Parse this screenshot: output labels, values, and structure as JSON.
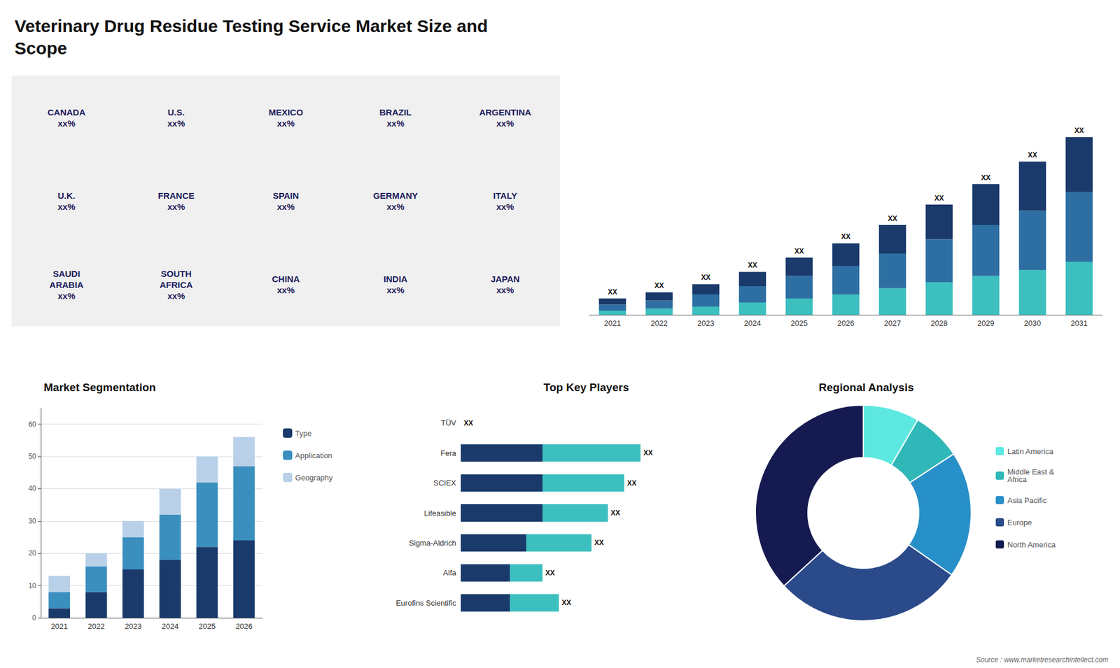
{
  "chart_data": [
    {
      "type": "map",
      "title": "Veterinary Drug Residue Testing Service Market Size and\nScope",
      "annotations": [
        "CANADA\nxx%",
        "U.S.\nxx%",
        "MEXICO\nxx%",
        "BRAZIL\nxx%",
        "ARGENTINA\nxx%",
        "U.K.\nxx%",
        "FRANCE\nxx%",
        "SPAIN\nxx%",
        "GERMANY\nxx%",
        "ITALY\nxx%",
        "SAUDI\nARABIA\nxx%",
        "SOUTH\nAFRICA\nxx%",
        "CHINA\nxx%",
        "INDIA\nxx%",
        "JAPAN\nxx%"
      ],
      "color": "#1a1a5a"
    },
    {
      "type": "bar",
      "stacked": true,
      "categories": [
        "2021",
        "2022",
        "2023",
        "2024",
        "2025",
        "2026",
        "2027",
        "2028",
        "2029",
        "2030",
        "2031"
      ],
      "series": [
        {
          "color": "#3dbfbf",
          "values": [
            2,
            3,
            4,
            6,
            8,
            10,
            13,
            16,
            19,
            22,
            26
          ]
        },
        {
          "color": "#2e6fa3",
          "values": [
            3,
            4,
            6,
            8,
            11,
            14,
            17,
            21,
            25,
            29,
            34
          ]
        },
        {
          "color": "#1a3a6b",
          "values": [
            3,
            4,
            5,
            7,
            9,
            11,
            14,
            17,
            20,
            24,
            27
          ],
          "value_labels": [
            "XX",
            "XX",
            "XX",
            "XX",
            "XX",
            "XX",
            "XX",
            "XX",
            "XX",
            "XX",
            "XX"
          ]
        }
      ],
      "ylim": [
        0,
        111.36
      ],
      "tick_labels": "x",
      "grid": false
    },
    {
      "type": "bar",
      "title": "Market Segmentation",
      "stacked": true,
      "categories": [
        "2021",
        "2022",
        "2023",
        "2024",
        "2025",
        "2026"
      ],
      "series": [
        {
          "name": "Type",
          "color": "#1a3a6b",
          "values": [
            3,
            8,
            15,
            18,
            22,
            24
          ]
        },
        {
          "name": "Application",
          "color": "#3a8fbf",
          "values": [
            5,
            8,
            10,
            14,
            20,
            23
          ]
        },
        {
          "name": "Geography",
          "color": "#b8d0e8",
          "values": [
            5,
            4,
            5,
            8,
            8,
            9
          ]
        }
      ],
      "ylim": [
        0,
        65
      ],
      "yticks": [
        0,
        10,
        20,
        30,
        40,
        50,
        60
      ],
      "grid": true,
      "legend": "right"
    },
    {
      "type": "bar",
      "title": "Top Key Players",
      "orientation": "horizontal",
      "stacked": true,
      "categories": [
        "TÜV",
        "Fera",
        "SCIEX",
        "Lifeasible",
        "Sigma-Aldrich",
        "Alfa",
        "Eurofins Scientific"
      ],
      "series": [
        {
          "color": "#1a3a6b",
          "values": [
            0,
            5,
            5,
            5,
            4,
            3,
            3
          ]
        },
        {
          "color": "#3dbfbf",
          "values": [
            0,
            6,
            5,
            4,
            4,
            2,
            3
          ],
          "value_labels": [
            "XX",
            "XX",
            "XX",
            "XX",
            "XX",
            "XX",
            "XX"
          ]
        }
      ],
      "xlim": [
        0,
        15
      ],
      "tick_labels": "y",
      "grid": false
    },
    {
      "type": "pie",
      "title": "Regional Analysis",
      "categories": [
        "Latin America",
        "Middle East &\nAfrica",
        "Asia Pacific",
        "Europe",
        "North America"
      ],
      "values": [
        8,
        7,
        18,
        27,
        35
      ],
      "colors": [
        "#5ce8e0",
        "#30b8b8",
        "#2890c8",
        "#2a4a8a",
        "#151a50"
      ],
      "legend": "right",
      "annotations": [
        "Source : www.marketresearchintellect.com"
      ]
    }
  ]
}
